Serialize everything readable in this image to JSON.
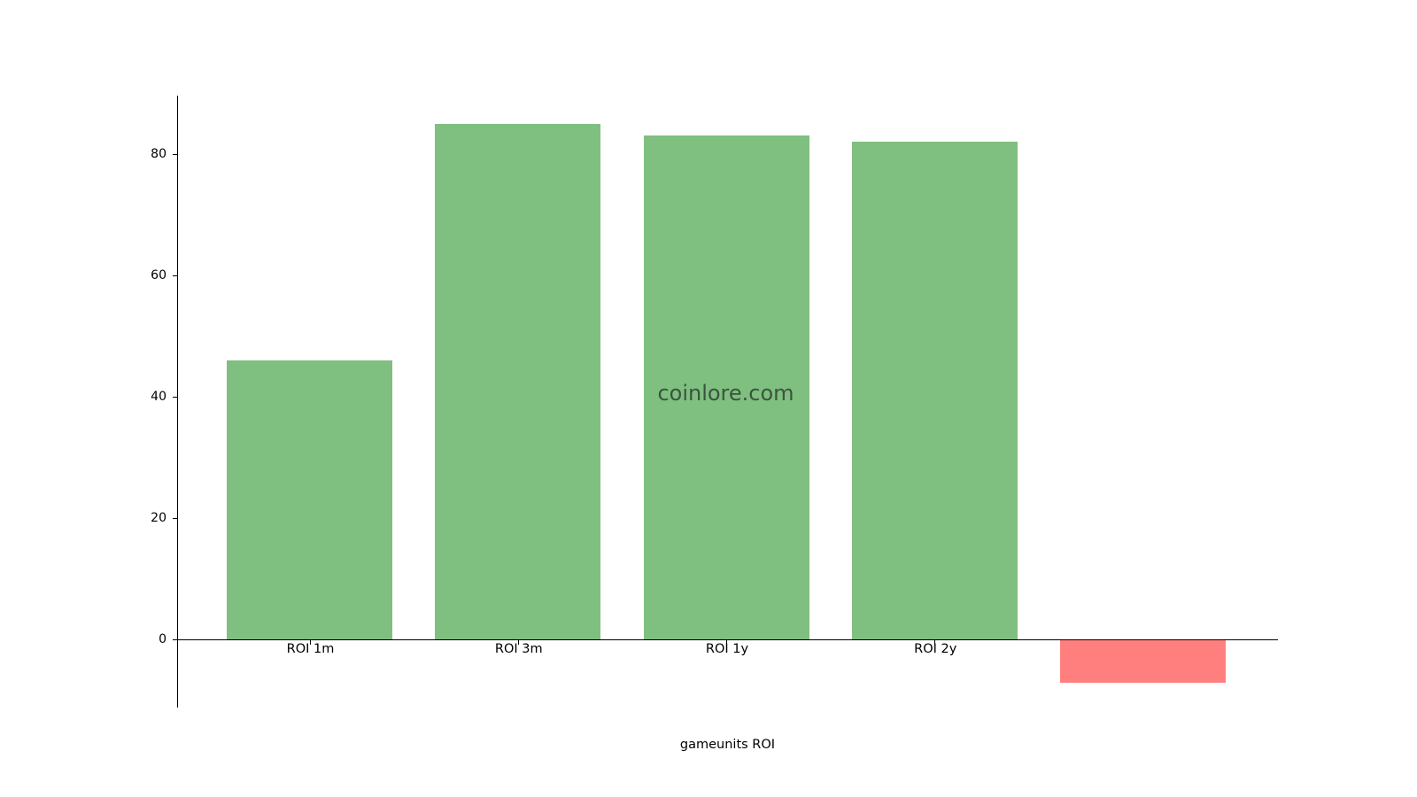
{
  "watermark": "coinlore.com",
  "xlabel": "gameunits ROI",
  "colors": {
    "positive_bar": "#7fbf7f",
    "negative_bar": "#ff7f7f",
    "axis": "#000000",
    "tick_label": "#000000",
    "watermark_text": "#3b5440"
  },
  "chart_data": {
    "type": "bar",
    "categories": [
      "ROI 1m",
      "ROI 3m",
      "ROI 1y",
      "ROI 2y",
      ""
    ],
    "values": [
      46,
      85,
      83,
      82,
      -7
    ],
    "bar_colors": [
      "#7fbf7f",
      "#7fbf7f",
      "#7fbf7f",
      "#7fbf7f",
      "#ff7f7f"
    ],
    "title": "",
    "xlabel": "gameunits ROI",
    "ylabel": "",
    "ylim": [
      -11.2,
      89.6
    ],
    "yticks": [
      0,
      20,
      40,
      60,
      80
    ],
    "grid": false,
    "legend": null,
    "annotations": [
      "coinlore.com"
    ]
  }
}
